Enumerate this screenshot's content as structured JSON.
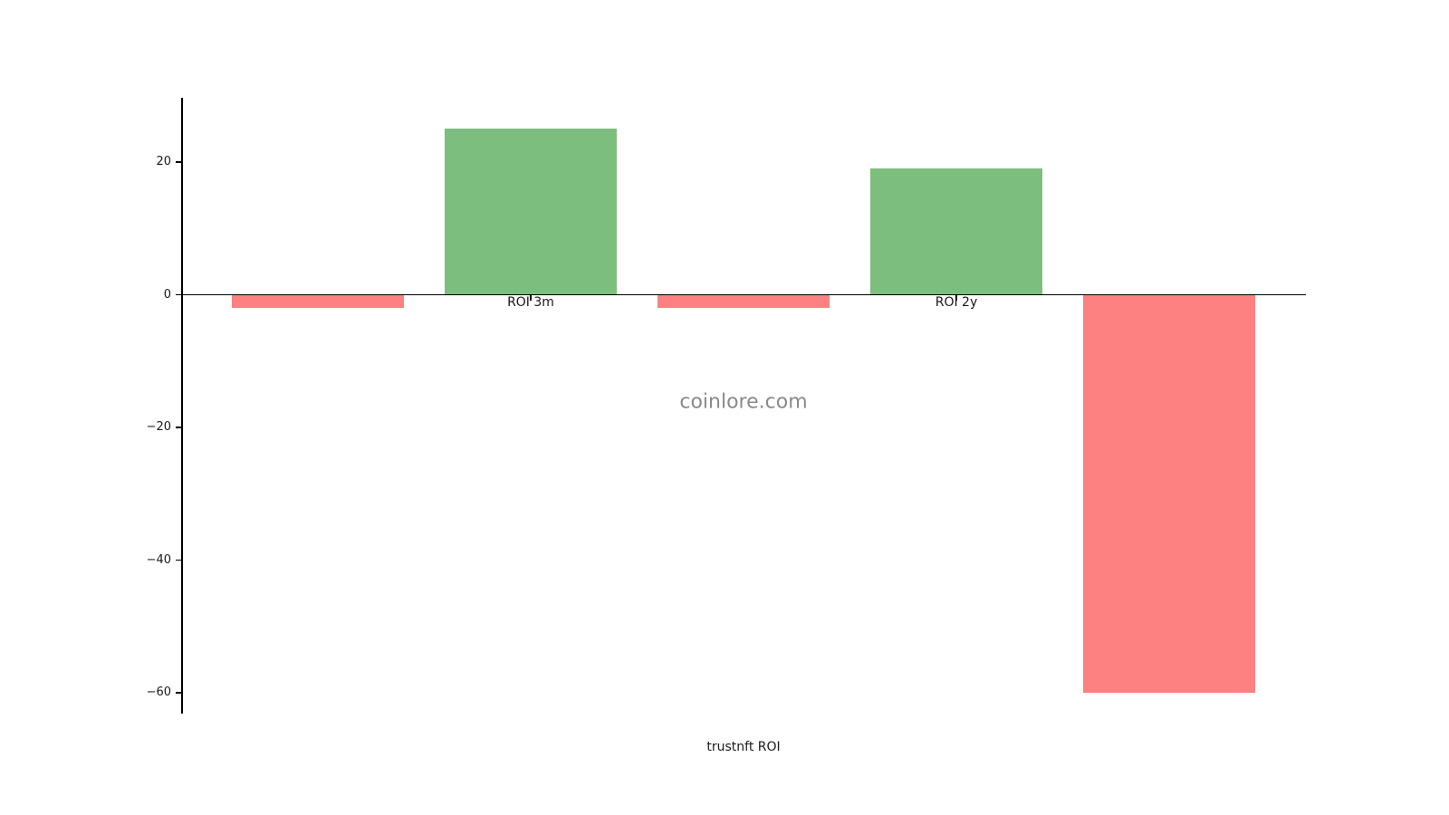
{
  "page": {
    "background": "#ffffff",
    "watermark": "coinlore.com",
    "watermark_color": "#8a8a8a"
  },
  "chart_data": {
    "type": "bar",
    "title": "",
    "xlabel": "trustnft ROI",
    "ylabel": "",
    "categories": [
      "",
      "ROI 3m",
      "",
      "ROI 2y",
      ""
    ],
    "values": [
      -2,
      25,
      -2,
      19,
      -60
    ],
    "series": [
      {
        "name": "ROI",
        "values": [
          -2,
          25,
          -2,
          19,
          -60
        ]
      }
    ],
    "bar_colors": [
      "#fd8181",
      "#7cbe7d",
      "#fd8181",
      "#7cbe7d",
      "#fd8181"
    ],
    "positive_color": "#7cbe7d",
    "negative_color": "#fd8181",
    "yticks": [
      20,
      0,
      -20,
      -40,
      -60
    ],
    "ytick_labels": [
      "20",
      "0",
      "−20",
      "−40",
      "−60"
    ],
    "ylim": [
      -63,
      29.7
    ],
    "grid": false,
    "legend": false,
    "axis_color": "#000000",
    "tick_label_color": "#1a1a1a",
    "baseline_at_zero": true
  }
}
